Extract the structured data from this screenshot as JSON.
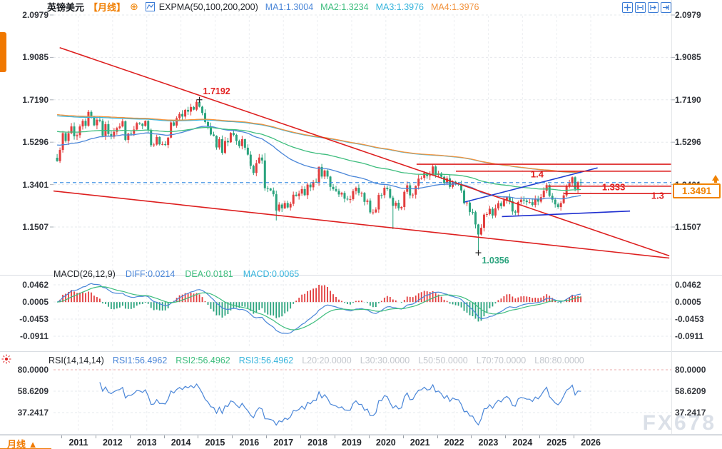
{
  "header": {
    "symbol": "英镑美元",
    "period": "【月线】",
    "indicator_label": "EXPMA(50,100,200,200)",
    "ma_values": [
      {
        "text": "MA1:1.3004",
        "color": "#4a86d8"
      },
      {
        "text": "MA2:1.3234",
        "color": "#3dbd7d"
      },
      {
        "text": "MA3:1.3976",
        "color": "#36b4dc"
      },
      {
        "text": "MA4:1.3976",
        "color": "#f2923c"
      }
    ]
  },
  "macd_panel": {
    "label": "MACD(26,12,9)",
    "values": [
      {
        "text": "DIFF:0.0214",
        "color": "#4a86d8"
      },
      {
        "text": "DEA:0.0181",
        "color": "#3dbd7d"
      },
      {
        "text": "MACD:0.0065",
        "color": "#36b4dc"
      }
    ],
    "tick_labels": [
      "0.0462",
      "0.0005",
      "-0.0453",
      "-0.0911"
    ]
  },
  "rsi_panel": {
    "label": "RSI(14,14,14)",
    "values": [
      {
        "text": "RSI1:56.4962",
        "color": "#4a86d8"
      },
      {
        "text": "RSI2:56.4962",
        "color": "#3dbd7d"
      },
      {
        "text": "RSI3:56.4962",
        "color": "#36b4dc"
      },
      {
        "text": "L20:20.0000",
        "color": "#c3c7cd"
      },
      {
        "text": "L30:30.0000",
        "color": "#c3c7cd"
      },
      {
        "text": "L50:50.0000",
        "color": "#c3c7cd"
      },
      {
        "text": "L70:70.0000",
        "color": "#c3c7cd"
      },
      {
        "text": "L80:80.0000",
        "color": "#c3c7cd"
      }
    ],
    "tick_labels": [
      "80.0000",
      "58.6209",
      "37.2417"
    ]
  },
  "price_axis_tick_labels": [
    "2.0979",
    "1.9085",
    "1.7190",
    "1.5296",
    "1.3401",
    "1.1507"
  ],
  "x_axis_years": [
    "2011",
    "2012",
    "2013",
    "2014",
    "2015",
    "2016",
    "2017",
    "2018",
    "2019",
    "2020",
    "2021",
    "2022",
    "2023",
    "2024",
    "2025",
    "2026"
  ],
  "bottom_bar": {
    "period": "月线",
    "arrow": "▲"
  },
  "price_box": {
    "value": "1.3491",
    "color": "#f08200"
  },
  "watermark": "FX678",
  "chart_data": {
    "type": "candlestick",
    "title": "英镑美元 月线 (GBP/USD monthly) with EXPMA(50,100,200,200), MACD(26,12,9), RSI(14,14,14)",
    "y_axis": {
      "ticks": [
        2.0979,
        1.9085,
        1.719,
        1.5296,
        1.3401,
        1.1507
      ]
    },
    "x_axis": {
      "years": [
        2011,
        2012,
        2013,
        2014,
        2015,
        2016,
        2017,
        2018,
        2019,
        2020,
        2021,
        2022,
        2023,
        2024,
        2025,
        2026
      ]
    },
    "series_start": {
      "year": 2010,
      "month": 5
    },
    "monthly_closes": [
      1.445,
      1.495,
      1.57,
      1.535,
      1.57,
      1.6,
      1.556,
      1.561,
      1.6,
      1.625,
      1.603,
      1.665,
      1.645,
      1.605,
      1.63,
      1.625,
      1.558,
      1.61,
      1.566,
      1.554,
      1.576,
      1.593,
      1.6,
      1.623,
      1.54,
      1.568,
      1.567,
      1.586,
      1.615,
      1.612,
      1.602,
      1.625,
      1.585,
      1.516,
      1.519,
      1.553,
      1.52,
      1.521,
      1.517,
      1.55,
      1.618,
      1.604,
      1.637,
      1.656,
      1.644,
      1.674,
      1.666,
      1.687,
      1.675,
      1.71,
      1.688,
      1.66,
      1.62,
      1.6,
      1.564,
      1.558,
      1.506,
      1.543,
      1.482,
      1.535,
      1.529,
      1.571,
      1.562,
      1.535,
      1.512,
      1.543,
      1.505,
      1.474,
      1.424,
      1.392,
      1.436,
      1.461,
      1.448,
      1.324,
      1.323,
      1.314,
      1.297,
      1.224,
      1.251,
      1.234,
      1.258,
      1.238,
      1.254,
      1.295,
      1.289,
      1.3,
      1.32,
      1.293,
      1.34,
      1.328,
      1.352,
      1.351,
      1.419,
      1.376,
      1.403,
      1.376,
      1.33,
      1.32,
      1.312,
      1.296,
      1.303,
      1.277,
      1.275,
      1.275,
      1.311,
      1.326,
      1.303,
      1.303,
      1.263,
      1.269,
      1.216,
      1.216,
      1.229,
      1.294,
      1.293,
      1.326,
      1.32,
      1.282,
      1.245,
      1.259,
      1.234,
      1.24,
      1.308,
      1.337,
      1.292,
      1.295,
      1.334,
      1.367,
      1.37,
      1.393,
      1.378,
      1.382,
      1.421,
      1.383,
      1.39,
      1.375,
      1.347,
      1.368,
      1.33,
      1.353,
      1.344,
      1.342,
      1.314,
      1.257,
      1.26,
      1.218,
      1.217,
      1.162,
      1.117,
      1.147,
      1.206,
      1.208,
      1.232,
      1.202,
      1.234,
      1.257,
      1.244,
      1.271,
      1.283,
      1.267,
      1.22,
      1.215,
      1.262,
      1.273,
      1.269,
      1.262,
      1.262,
      1.249,
      1.274,
      1.264,
      1.284,
      1.313,
      1.338,
      1.29,
      1.273,
      1.252,
      1.24,
      1.258,
      1.292,
      1.333,
      1.346,
      1.373,
      1.32,
      1.351,
      1.3491
    ],
    "extreme_overrides": {
      "2014-07": {
        "high": 1.7192
      },
      "2016-06": {
        "high": 1.481
      },
      "2016-10": {
        "low": 1.18
      },
      "2020-03": {
        "low": 1.141
      },
      "2022-09": {
        "low": 1.0356
      }
    },
    "candle_up_color": "#e23d3d",
    "candle_down_color": "#2aa37d",
    "current_price": 1.3491,
    "current_price_line_color": "#2f86e0",
    "ema_overlays": [
      {
        "name": "MA1",
        "period": 50,
        "seed": 1.52,
        "color": "#4a86d8"
      },
      {
        "name": "MA2",
        "period": 100,
        "seed": 1.58,
        "color": "#3dbd7d"
      },
      {
        "name": "MA3",
        "period": 200,
        "seed": 1.65,
        "color": "#36b4dc"
      },
      {
        "name": "MA4",
        "period": 200,
        "seed": 1.655,
        "color": "#f2923c"
      }
    ],
    "trendlines": [
      {
        "t1": 2010.45,
        "p1": 1.952,
        "t2": 2028.3,
        "p2": 1.022,
        "color": "#dd1f1f"
      },
      {
        "t1": 2010.25,
        "p1": 1.312,
        "t2": 2028.3,
        "p2": 1.012,
        "color": "#dd1f1f"
      },
      {
        "t1": 2022.3,
        "p1": 1.262,
        "t2": 2026.2,
        "p2": 1.415,
        "color": "#1f3fd0"
      },
      {
        "t1": 2023.4,
        "p1": 1.197,
        "t2": 2027.15,
        "p2": 1.222,
        "color": "#1f2fd0"
      }
    ],
    "hlines": [
      {
        "p": 1.431,
        "t1": 2020.9,
        "t2": 2028.35,
        "color": "#dd1f1f"
      },
      {
        "p": 1.4,
        "t1": 2022.05,
        "t2": 2028.35,
        "color": "#dd1f1f"
      },
      {
        "p": 1.333,
        "t1": 2024.75,
        "t2": 2028.5,
        "color": "#dd1f1f"
      },
      {
        "p": 1.3,
        "t1": 2025.2,
        "t2": 2028.5,
        "color": "#dd1f1f"
      }
    ],
    "line_labels": [
      {
        "text": "1.4",
        "t": 2024.43,
        "p": 1.387,
        "color": "#e01f1f"
      },
      {
        "text": "1.333",
        "t": 2026.67,
        "p": 1.329,
        "color": "#e01f1f"
      },
      {
        "text": "1.3",
        "t": 2027.96,
        "p": 1.291,
        "color": "#e01f1f"
      }
    ],
    "annotations": [
      {
        "month": "2014-07",
        "text": "1.7192",
        "value": 1.7192,
        "placement": "above",
        "color": "#e22020"
      },
      {
        "month": "2022-09",
        "text": "1.0356",
        "value": 1.0356,
        "placement": "below",
        "color": "#2aa37d"
      }
    ],
    "macd": {
      "fast": 12,
      "slow": 26,
      "signal": 9,
      "tick_values": [
        0.0462,
        0.0005,
        -0.0453,
        -0.0911
      ],
      "diff_color": "#4a86d8",
      "dea_color": "#3dbd7d",
      "bar_up_color": "#e23d3d",
      "bar_down_color": "#2aa37d"
    },
    "rsi": {
      "period": 14,
      "tick_values": [
        80.0,
        58.6209,
        37.2417
      ],
      "line_color": "#4a86d8"
    }
  }
}
